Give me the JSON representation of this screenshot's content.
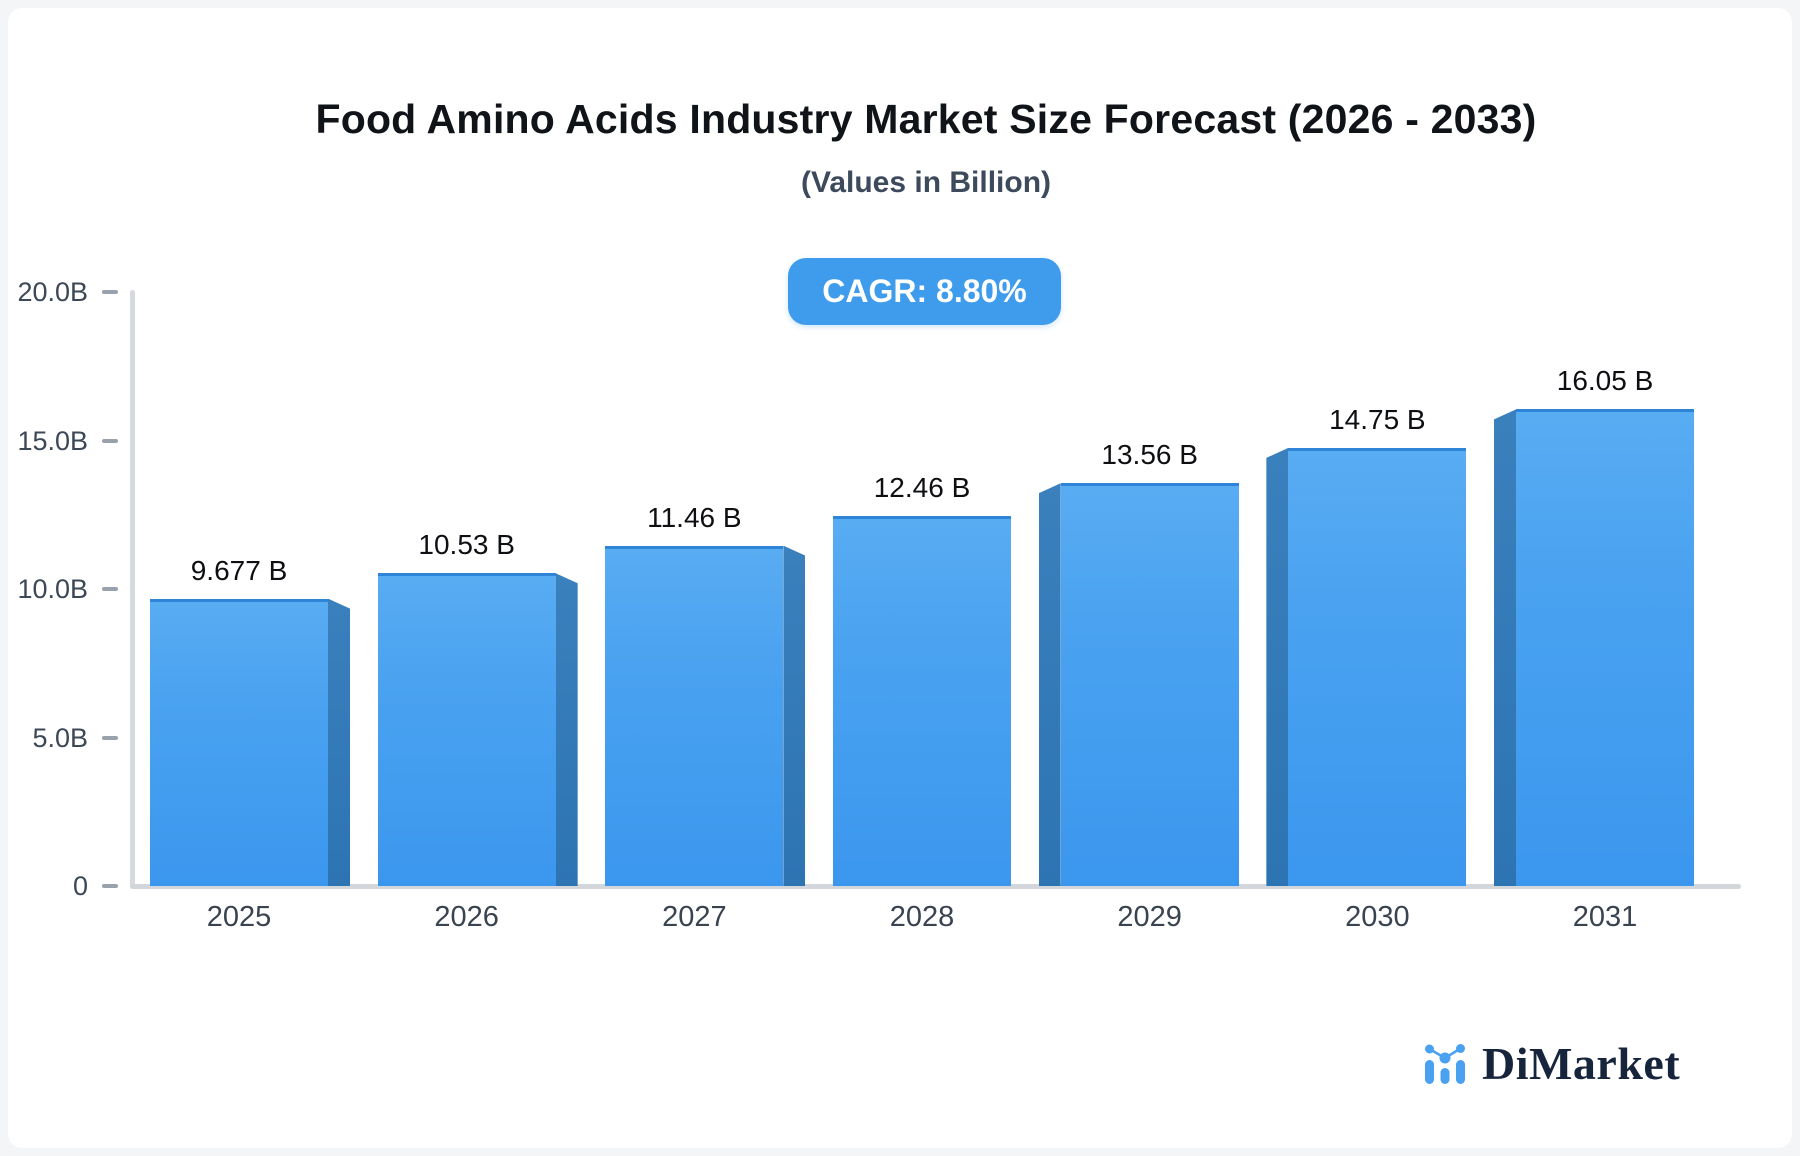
{
  "header": {
    "title": "Food Amino Acids Industry Market Size Forecast (2026 - 2033)",
    "subtitle": "(Values in Billion)",
    "cagr_label": "CAGR: 8.80%"
  },
  "chart_data": {
    "type": "bar",
    "title": "Food Amino Acids Industry Market Size Forecast (2026 - 2033)",
    "subtitle": "(Values in Billion)",
    "unit": "Billion",
    "cagr": "8.80%",
    "categories": [
      "2025",
      "2026",
      "2027",
      "2028",
      "2029",
      "2030",
      "2031"
    ],
    "values": [
      9.677,
      10.53,
      11.46,
      12.46,
      13.56,
      14.75,
      16.05
    ],
    "value_labels": [
      "9.677 B",
      "10.53 B",
      "11.46 B",
      "12.46 B",
      "13.56 B",
      "14.75 B",
      "16.05 B"
    ],
    "xlabel": "",
    "ylabel": "",
    "ylim": [
      0,
      20
    ],
    "y_ticks": [
      {
        "value": 20,
        "label": "20.0B"
      },
      {
        "value": 15,
        "label": "15.0B"
      },
      {
        "value": 10,
        "label": "10.0B"
      },
      {
        "value": 5,
        "label": "5.0B"
      },
      {
        "value": 0,
        "label": "0"
      }
    ],
    "grid": false,
    "legend": false,
    "style_3d": true,
    "colors": {
      "bar_face_top": "#58acf2",
      "bar_face_bottom": "#3b97ee",
      "bar_top_edge": "#2e85d8",
      "bar_side": "#2e76b5",
      "badge_background": "#3f9cec",
      "badge_text": "#ffffff",
      "axis_line": "#d6d9de",
      "tick_dash": "#99a1ac",
      "axis_text": "#3c4856",
      "value_text": "#0d0f12",
      "title_text": "#101419",
      "subtitle_text": "#3d4a5c",
      "brand_navy": "#16243c",
      "brand_blue": "#4aa1f2",
      "card_background": "#ffffff",
      "page_background": "#f4f5f7"
    }
  },
  "footer": {
    "brand": "DiMarket"
  }
}
